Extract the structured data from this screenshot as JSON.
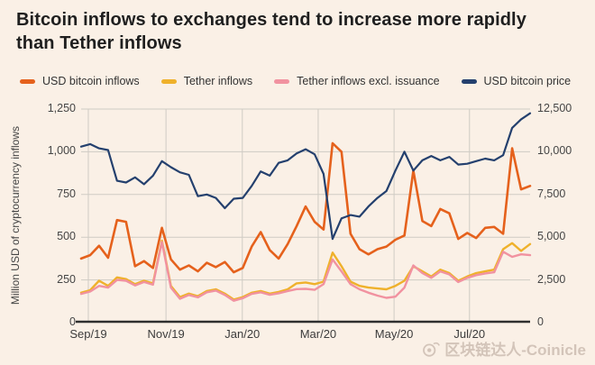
{
  "title": {
    "lines": [
      "Bitcoin inflows to exchanges tend to increase more rapidly",
      "than Tether inflows"
    ],
    "text": "Bitcoin inflows to exchanges tend to increase more rapidly than Tether inflows"
  },
  "watermark": {
    "icon": "weibo-eye-icon",
    "text": "区块链达人-Coinicle"
  },
  "colors": {
    "background": "#FAF0E6",
    "grid": "#CFCBC4",
    "axis": "#2F2F2F",
    "title_text": "#1F1F1F",
    "tick_text": "#454545",
    "watermark": "#CFC0B5"
  },
  "chart_data": {
    "type": "line",
    "title": "Bitcoin inflows to exchanges tend to increase more rapidly than Tether inflows",
    "grid": true,
    "legend_position": "top",
    "y_left": {
      "label": "Million USD of cryptocurrency inflows",
      "range": [
        0,
        1250
      ],
      "ticks": [
        {
          "label": "0",
          "value": 0
        },
        {
          "label": "250",
          "value": 250
        },
        {
          "label": "500",
          "value": 500
        },
        {
          "label": "750",
          "value": 750
        },
        {
          "label": "1,000",
          "value": 1000
        },
        {
          "label": "1,250",
          "value": 1250
        }
      ]
    },
    "y_right": {
      "label": "",
      "range": [
        0,
        12500
      ],
      "ticks": [
        {
          "label": "0",
          "value": 0
        },
        {
          "label": "2,500",
          "value": 2500
        },
        {
          "label": "5,000",
          "value": 5000
        },
        {
          "label": "7,500",
          "value": 7500
        },
        {
          "label": "10,000",
          "value": 10000
        },
        {
          "label": "12,500",
          "value": 12500
        }
      ]
    },
    "x_ticks": [
      {
        "label": "Sep/19",
        "pos": 0.016
      },
      {
        "label": "Nov/19",
        "pos": 0.189
      },
      {
        "label": "Jan/20",
        "pos": 0.359
      },
      {
        "label": "Mar/20",
        "pos": 0.528
      },
      {
        "label": "May/20",
        "pos": 0.697
      },
      {
        "label": "Jul/20",
        "pos": 0.865
      }
    ],
    "x_span": "weekly points from late Aug 2019 to early Aug 2020",
    "series": [
      {
        "name": "USD bitcoin inflows",
        "color": "#E5611C",
        "axis": "left",
        "width": 2.6,
        "values": [
          375,
          395,
          450,
          380,
          600,
          590,
          330,
          360,
          320,
          555,
          370,
          310,
          335,
          300,
          350,
          325,
          355,
          295,
          320,
          445,
          530,
          425,
          375,
          460,
          565,
          680,
          590,
          545,
          1050,
          1000,
          520,
          430,
          400,
          430,
          445,
          485,
          510,
          890,
          595,
          565,
          665,
          640,
          490,
          525,
          495,
          555,
          560,
          520,
          1020,
          780,
          800
        ]
      },
      {
        "name": "Tether inflows",
        "color": "#EFB12B",
        "axis": "left",
        "width": 2.4,
        "values": [
          175,
          190,
          245,
          215,
          265,
          255,
          225,
          245,
          230,
          480,
          215,
          150,
          170,
          155,
          185,
          195,
          170,
          135,
          150,
          175,
          185,
          170,
          180,
          195,
          230,
          235,
          225,
          240,
          410,
          330,
          240,
          215,
          205,
          200,
          195,
          215,
          245,
          330,
          300,
          270,
          310,
          290,
          245,
          270,
          290,
          300,
          310,
          430,
          465,
          420,
          460
        ]
      },
      {
        "name": "Tether inflows excl. issuance",
        "color": "#F192A0",
        "axis": "left",
        "width": 2.4,
        "values": [
          168,
          182,
          215,
          205,
          250,
          245,
          218,
          238,
          222,
          472,
          205,
          140,
          162,
          148,
          178,
          188,
          162,
          128,
          143,
          168,
          178,
          163,
          172,
          185,
          196,
          198,
          192,
          225,
          370,
          300,
          225,
          195,
          175,
          158,
          145,
          152,
          205,
          335,
          290,
          262,
          300,
          282,
          238,
          262,
          278,
          288,
          295,
          415,
          385,
          400,
          395
        ]
      },
      {
        "name": "USD bitcoin price",
        "color": "#24406E",
        "axis": "right",
        "width": 2.2,
        "values": [
          10300,
          10450,
          10200,
          10100,
          8300,
          8200,
          8500,
          8100,
          8600,
          9450,
          9100,
          8800,
          8650,
          7400,
          7500,
          7300,
          6700,
          7250,
          7300,
          8000,
          8850,
          8600,
          9350,
          9500,
          9900,
          10150,
          9850,
          8700,
          4900,
          6100,
          6300,
          6200,
          6800,
          7300,
          7700,
          8900,
          10000,
          8900,
          9500,
          9750,
          9500,
          9700,
          9250,
          9300,
          9450,
          9600,
          9500,
          9800,
          11400,
          11900,
          12250
        ]
      }
    ]
  }
}
